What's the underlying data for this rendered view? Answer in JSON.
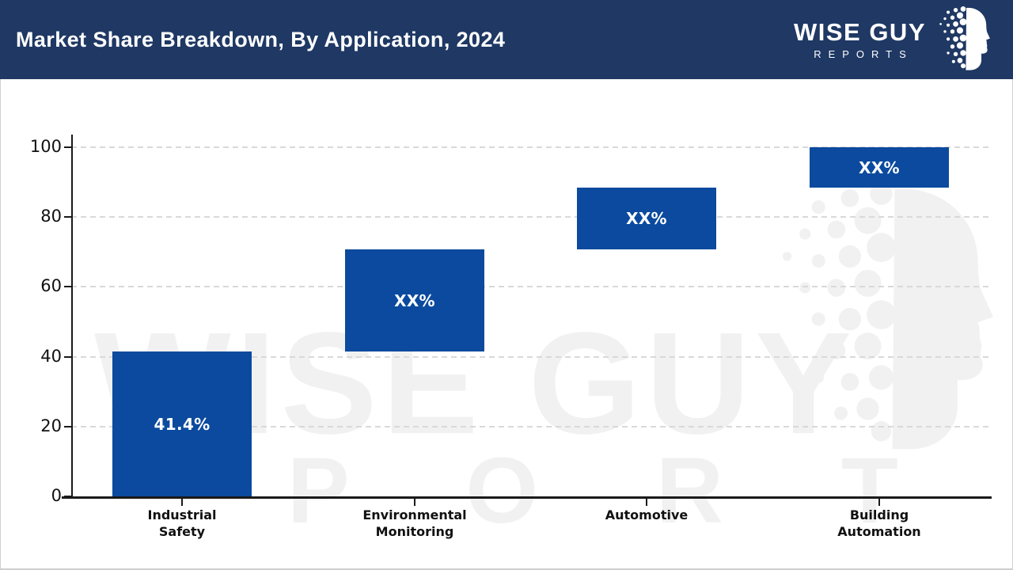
{
  "header": {
    "title": "Market Share Breakdown, By Application, 2024",
    "bg_color": "#1F3864",
    "logo": {
      "line1": "WISE GUY",
      "line2": "REPORTS"
    }
  },
  "watermark": {
    "line1": "WISE GUY",
    "line2": "P O R T S"
  },
  "chart_data": {
    "type": "bar",
    "subtype": "floating-waterfall",
    "title": "Market Share Breakdown, By Application, 2024",
    "categories": [
      "Industrial Safety",
      "Environmental Monitoring",
      "Automotive",
      "Building Automation"
    ],
    "segments": [
      {
        "category": "Industrial Safety",
        "start": 0,
        "end": 41.4,
        "label": "41.4%"
      },
      {
        "category": "Environmental Monitoring",
        "start": 41.4,
        "end": 70.7,
        "label": "XX%"
      },
      {
        "category": "Automotive",
        "start": 70.7,
        "end": 88.4,
        "label": "XX%"
      },
      {
        "category": "Building Automation",
        "start": 88.4,
        "end": 100,
        "label": "XX%"
      }
    ],
    "yticks": [
      0,
      20,
      40,
      60,
      80,
      100
    ],
    "ylim": [
      0,
      100
    ],
    "bar_color": "#0B4A9E",
    "grid": "horizontal dashed",
    "gridline_color": "#d9d9d9",
    "legend": "none"
  }
}
